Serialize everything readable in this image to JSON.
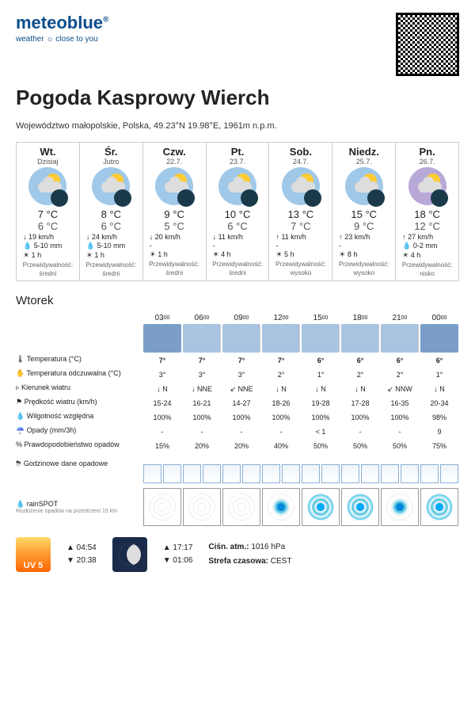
{
  "brand": {
    "name": "meteoblue",
    "tagline": "weather ☼ close to you"
  },
  "title": "Pogoda Kasprowy Wierch",
  "subtitle": "Województwo małopolskie, Polska, 49.23°N 19.98°E, 1961m n.p.m.",
  "days": [
    {
      "abbr": "Wt.",
      "sub": "Dzisiaj",
      "hi": "7 °C",
      "lo": "6 °C",
      "wind": "↓ 19 km/h",
      "precip": "💧 5-10 mm",
      "sun": "☀ 1 h",
      "pred": "Przewidywalność:",
      "pred2": "średni",
      "bg": "#a0c8e8"
    },
    {
      "abbr": "Śr.",
      "sub": "Jutro",
      "hi": "8 °C",
      "lo": "6 °C",
      "wind": "↓ 24 km/h",
      "precip": "💧 5-10 mm",
      "sun": "☀ 1 h",
      "pred": "Przewidywalność:",
      "pred2": "średni",
      "bg": "#a0c8e8"
    },
    {
      "abbr": "Czw.",
      "sub": "22.7.",
      "hi": "9 °C",
      "lo": "5 °C",
      "wind": "↓ 20 km/h",
      "precip": "-",
      "sun": "☀ 1 h",
      "pred": "Przewidywalność:",
      "pred2": "średni",
      "bg": "#a0c8e8"
    },
    {
      "abbr": "Pt.",
      "sub": "23.7.",
      "hi": "10 °C",
      "lo": "6 °C",
      "wind": "↓ 11 km/h",
      "precip": "-",
      "sun": "☀ 4 h",
      "pred": "Przewidywalność:",
      "pred2": "średni",
      "bg": "#a0c8e8"
    },
    {
      "abbr": "Sob.",
      "sub": "24.7.",
      "hi": "13 °C",
      "lo": "7 °C",
      "wind": "↑ 11 km/h",
      "precip": "-",
      "sun": "☀ 5 h",
      "pred": "Przewidywalność:",
      "pred2": "wysoko",
      "bg": "#a0c8e8"
    },
    {
      "abbr": "Niedz.",
      "sub": "25.7.",
      "hi": "15 °C",
      "lo": "9 °C",
      "wind": "↑ 23 km/h",
      "precip": "-",
      "sun": "☀ 8 h",
      "pred": "Przewidywalność:",
      "pred2": "wysoko",
      "bg": "#a0c8e8"
    },
    {
      "abbr": "Pn.",
      "sub": "26.7.",
      "hi": "18 °C",
      "lo": "12 °C",
      "wind": "↑ 27 km/h",
      "precip": "💧 0-2 mm",
      "sun": "☀ 4 h",
      "pred": "Przewidywalność:",
      "pred2": "nisko",
      "bg": "#b8a8d8"
    }
  ],
  "hourly": {
    "title": "Wtorek",
    "labels": [
      "🌡 Temperatura (°C)",
      "✋ Temperatura odczuwalna (°C)",
      "▹ Kierunek wiatru",
      "⚑ Prędkość wiatru (km/h)",
      "💧 Wilgotność względna",
      "☔ Opady (mm/3h)",
      "% Prawdopodobieństwo opadów"
    ],
    "precip_label": "⛈ Godzinowe dane opadowe",
    "rainspot_label": "💧 rainSPOT",
    "rainspot_sub": "Rozłożenie opadów na przestrzeni 15 km",
    "cols": [
      {
        "time": "03",
        "sup": "00",
        "night": true,
        "temp": "7°",
        "feel": "3°",
        "dir": "↓ N",
        "wind": "15-24",
        "hum": "100%",
        "prec": "-",
        "prob": "15%",
        "rain": "dry"
      },
      {
        "time": "06",
        "sup": "00",
        "night": false,
        "temp": "7°",
        "feel": "3°",
        "dir": "↓ NNE",
        "wind": "16-21",
        "hum": "100%",
        "prec": "-",
        "prob": "20%",
        "rain": "dry"
      },
      {
        "time": "09",
        "sup": "00",
        "night": false,
        "temp": "7°",
        "feel": "3°",
        "dir": "↙ NNE",
        "wind": "14-27",
        "hum": "100%",
        "prec": "-",
        "prob": "20%",
        "rain": "dry"
      },
      {
        "time": "12",
        "sup": "00",
        "night": false,
        "temp": "7°",
        "feel": "2°",
        "dir": "↓ N",
        "wind": "18-26",
        "hum": "100%",
        "prec": "-",
        "prob": "40%",
        "rain": "mod"
      },
      {
        "time": "15",
        "sup": "00",
        "night": false,
        "temp": "6°",
        "feel": "1°",
        "dir": "↓ N",
        "wind": "19-28",
        "hum": "100%",
        "prec": "< 1",
        "prob": "50%",
        "rain": "wet"
      },
      {
        "time": "18",
        "sup": "00",
        "night": false,
        "temp": "6°",
        "feel": "2°",
        "dir": "↓ N",
        "wind": "17-28",
        "hum": "100%",
        "prec": "-",
        "prob": "50%",
        "rain": "wet"
      },
      {
        "time": "21",
        "sup": "00",
        "night": false,
        "temp": "6°",
        "feel": "2°",
        "dir": "↙ NNW",
        "wind": "16-35",
        "hum": "100%",
        "prec": "-",
        "prob": "50%",
        "rain": "mod"
      },
      {
        "time": "00",
        "sup": "00",
        "night": true,
        "temp": "6°",
        "feel": "1°",
        "dir": "↓ N",
        "wind": "20-34",
        "hum": "98%",
        "prec": "9",
        "prob": "75%",
        "rain": "wet"
      }
    ]
  },
  "footer": {
    "uv": "UV 5",
    "sunrise": "▲ 04:54",
    "sunset": "▼ 20:38",
    "moonrise": "▲ 17:17",
    "moonset": "▼ 01:06",
    "pressure_lbl": "Ciśn. atm.:",
    "pressure": "1016 hPa",
    "tz_lbl": "Strefa czasowa:",
    "tz": "CEST"
  }
}
